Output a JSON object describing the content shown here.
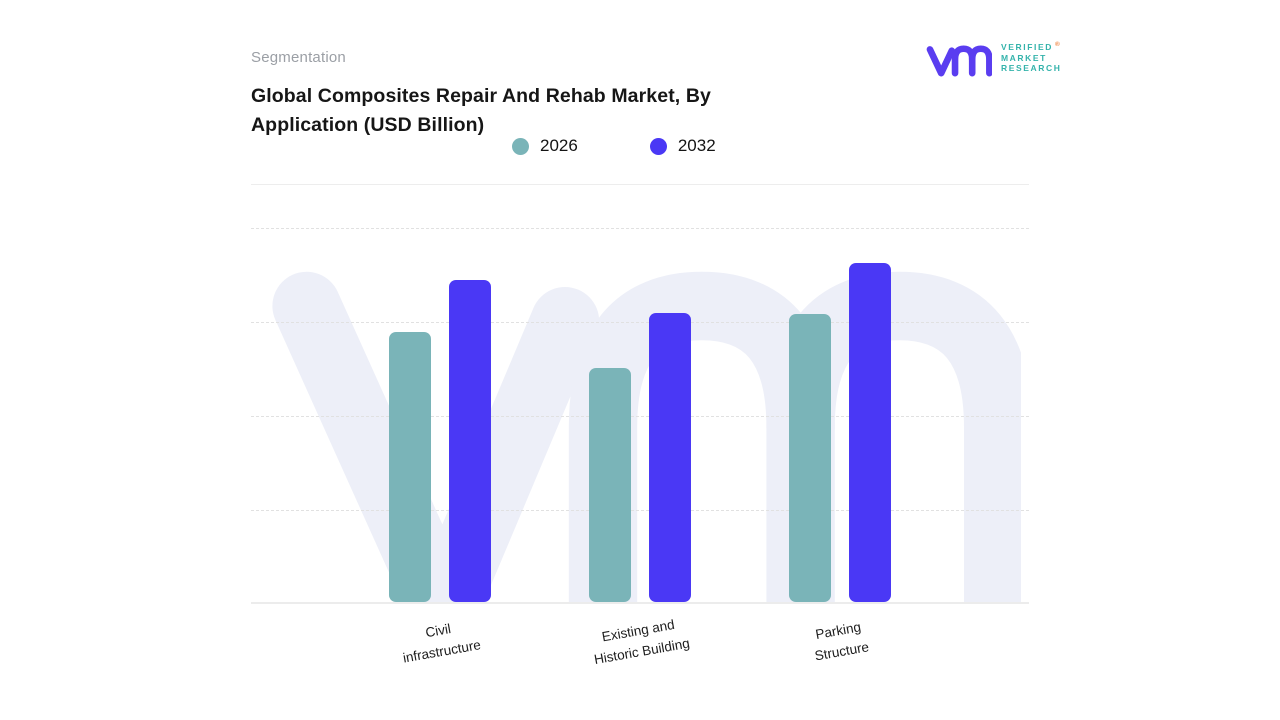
{
  "header": {
    "eyebrow": "Segmentation",
    "title": "Global Composites Repair And Rehab Market, By\nApplication (USD Billion)"
  },
  "logo": {
    "name": "Verified Market Research",
    "lines": [
      "VERIFIED",
      "MARKET",
      "RESEARCH"
    ],
    "registered": "®",
    "glyph_color": "#5a3df0",
    "text_color": "#34b3ab",
    "registered_color": "#f0823f"
  },
  "chart_data": {
    "type": "bar",
    "title": "Global Composites Repair And Rehab Market, By Application (USD Billion)",
    "categories": [
      "Civil\ninfrastructure",
      "Existing and\nHistoric Building",
      "Parking\nStructure"
    ],
    "series": [
      {
        "name": "2026",
        "color": "#7ab4b8",
        "values": [
          72.3,
          62.5,
          77.1
        ]
      },
      {
        "name": "2032",
        "color": "#4a38f5",
        "values": [
          86.2,
          77.4,
          90.7
        ]
      }
    ],
    "value_unit": "relative bar height, % of plot area (y-axis has no visible tick labels)",
    "ylim": [
      0,
      100
    ],
    "y_axis_labels": "none shown",
    "grid": "horizontal dashed lines at 0%, 25%, 50%, 75% from top; solid baseline",
    "legend_position": "top center",
    "xlabel": "",
    "ylabel": ""
  },
  "watermark": {
    "text": "vmr monogram",
    "color": "#edeff8"
  }
}
